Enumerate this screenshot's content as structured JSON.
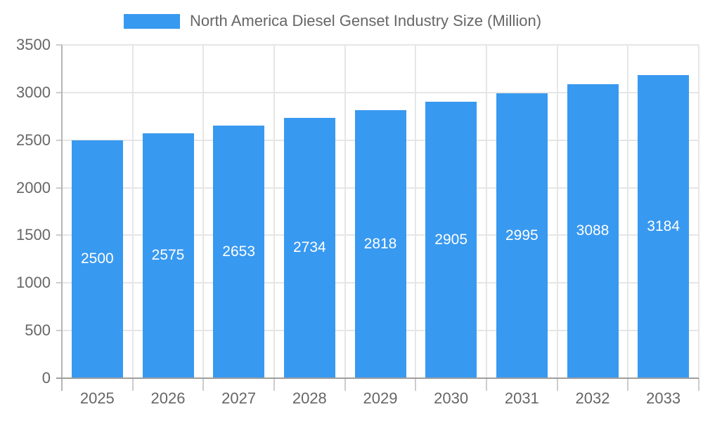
{
  "colors": {
    "bar": "#3899F0",
    "grid": "#e6e6e6",
    "axis_x_line": "#9e9e9e",
    "axis_y_line": "#b5b5b5",
    "tick": "#cccccc",
    "text": "#666666",
    "annotation": "#ffffff",
    "background": "#ffffff"
  },
  "legend": {
    "label": "North America Diesel Genset Industry Size (Million)",
    "position": "top-center",
    "swatch_color": "#3899F0"
  },
  "chart_data": {
    "type": "bar",
    "title": "North America Diesel Genset Industry Size (Million)",
    "categories": [
      "2025",
      "2026",
      "2027",
      "2028",
      "2029",
      "2030",
      "2031",
      "2032",
      "2033"
    ],
    "values": [
      2500,
      2575,
      2653,
      2734,
      2818,
      2905,
      2995,
      3088,
      3184
    ],
    "xlabel": "",
    "ylabel": "",
    "ylim": [
      0,
      3500
    ],
    "yticks": [
      0,
      500,
      1000,
      1500,
      2000,
      2500,
      3000,
      3500
    ],
    "grid": true,
    "bar_value_labels": "inside-center-white",
    "legend_position": "top"
  }
}
